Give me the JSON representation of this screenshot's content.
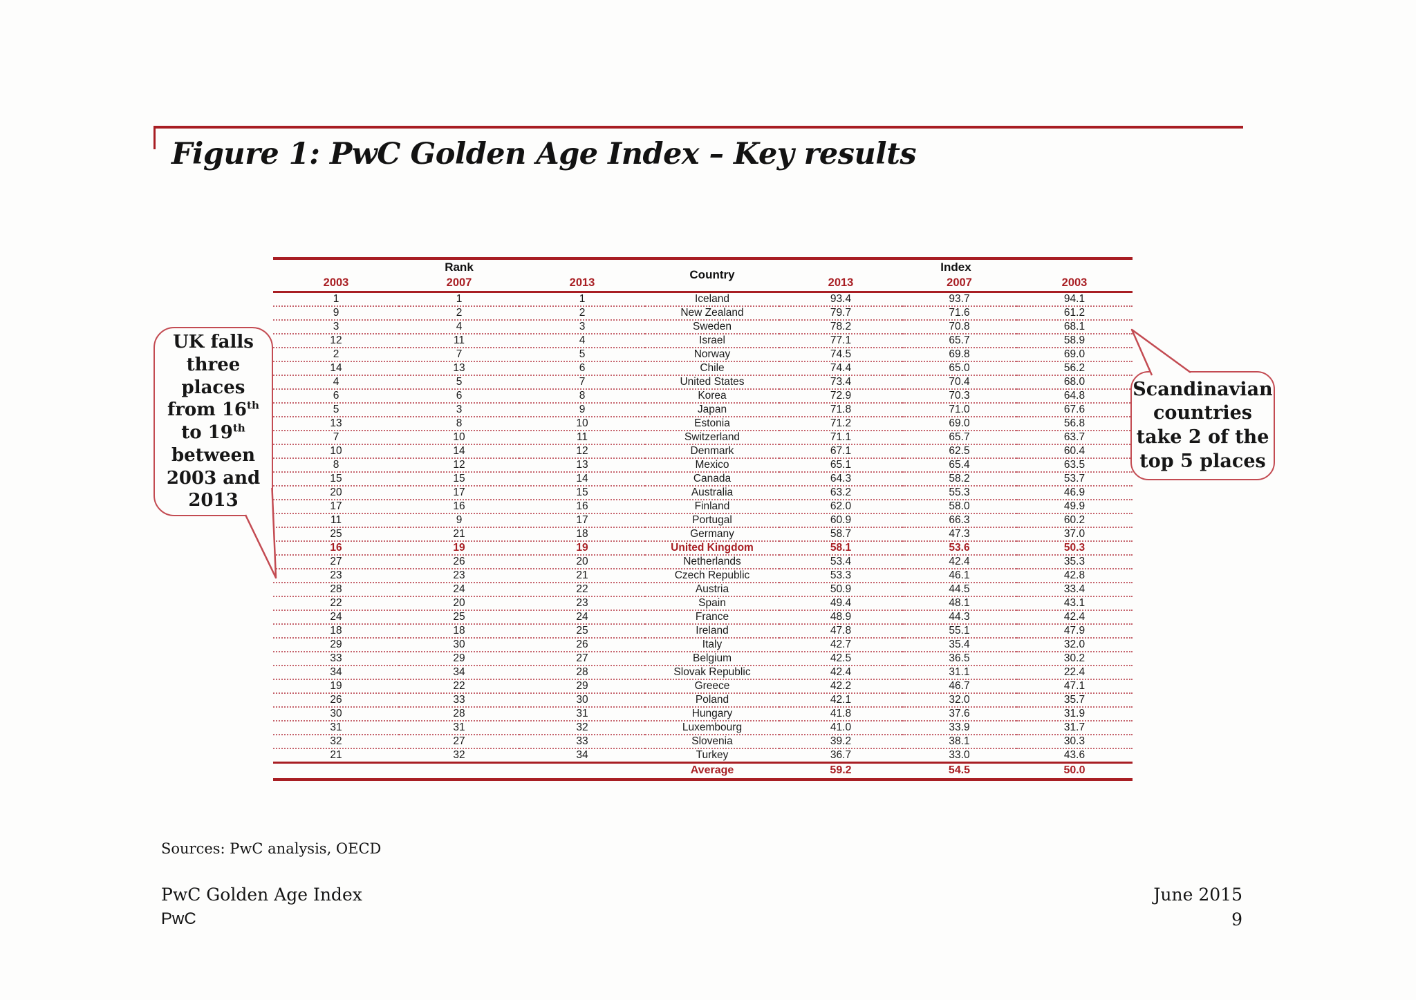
{
  "page": {
    "title": "Figure 1: PwC Golden Age Index – Key results",
    "sources": "Sources: PwC analysis, OECD",
    "footer_left1": "PwC Golden Age Index",
    "footer_left2": "PwC",
    "footer_right1": "June 2015",
    "footer_right2": "9"
  },
  "colors": {
    "accent_red": "#a81e23",
    "bubble_border_red": "#c34b52",
    "dotted_separator_red": "#c5636c"
  },
  "callouts": {
    "left": {
      "t1": "UK falls three places from 16",
      "sup": "th",
      "t2": " to 19",
      "t3": " between 2003 and 2013"
    },
    "right": {
      "text": "Scandinavian countries take 2 of the top 5 places"
    }
  },
  "table": {
    "group_headers": {
      "rank": "Rank",
      "country": "Country",
      "index": "Index"
    },
    "year_headers": {
      "rank": [
        "2003",
        "2007",
        "2013"
      ],
      "index": [
        "2013",
        "2007",
        "2003"
      ]
    },
    "highlight_country": "United Kingdom",
    "rows": [
      [
        "1",
        "1",
        "1",
        "Iceland",
        "93.4",
        "93.7",
        "94.1"
      ],
      [
        "9",
        "2",
        "2",
        "New Zealand",
        "79.7",
        "71.6",
        "61.2"
      ],
      [
        "3",
        "4",
        "3",
        "Sweden",
        "78.2",
        "70.8",
        "68.1"
      ],
      [
        "12",
        "11",
        "4",
        "Israel",
        "77.1",
        "65.7",
        "58.9"
      ],
      [
        "2",
        "7",
        "5",
        "Norway",
        "74.5",
        "69.8",
        "69.0"
      ],
      [
        "14",
        "13",
        "6",
        "Chile",
        "74.4",
        "65.0",
        "56.2"
      ],
      [
        "4",
        "5",
        "7",
        "United States",
        "73.4",
        "70.4",
        "68.0"
      ],
      [
        "6",
        "6",
        "8",
        "Korea",
        "72.9",
        "70.3",
        "64.8"
      ],
      [
        "5",
        "3",
        "9",
        "Japan",
        "71.8",
        "71.0",
        "67.6"
      ],
      [
        "13",
        "8",
        "10",
        "Estonia",
        "71.2",
        "69.0",
        "56.8"
      ],
      [
        "7",
        "10",
        "11",
        "Switzerland",
        "71.1",
        "65.7",
        "63.7"
      ],
      [
        "10",
        "14",
        "12",
        "Denmark",
        "67.1",
        "62.5",
        "60.4"
      ],
      [
        "8",
        "12",
        "13",
        "Mexico",
        "65.1",
        "65.4",
        "63.5"
      ],
      [
        "15",
        "15",
        "14",
        "Canada",
        "64.3",
        "58.2",
        "53.7"
      ],
      [
        "20",
        "17",
        "15",
        "Australia",
        "63.2",
        "55.3",
        "46.9"
      ],
      [
        "17",
        "16",
        "16",
        "Finland",
        "62.0",
        "58.0",
        "49.9"
      ],
      [
        "11",
        "9",
        "17",
        "Portugal",
        "60.9",
        "66.3",
        "60.2"
      ],
      [
        "25",
        "21",
        "18",
        "Germany",
        "58.7",
        "47.3",
        "37.0"
      ],
      [
        "16",
        "19",
        "19",
        "United Kingdom",
        "58.1",
        "53.6",
        "50.3"
      ],
      [
        "27",
        "26",
        "20",
        "Netherlands",
        "53.4",
        "42.4",
        "35.3"
      ],
      [
        "23",
        "23",
        "21",
        "Czech Republic",
        "53.3",
        "46.1",
        "42.8"
      ],
      [
        "28",
        "24",
        "22",
        "Austria",
        "50.9",
        "44.5",
        "33.4"
      ],
      [
        "22",
        "20",
        "23",
        "Spain",
        "49.4",
        "48.1",
        "43.1"
      ],
      [
        "24",
        "25",
        "24",
        "France",
        "48.9",
        "44.3",
        "42.4"
      ],
      [
        "18",
        "18",
        "25",
        "Ireland",
        "47.8",
        "55.1",
        "47.9"
      ],
      [
        "29",
        "30",
        "26",
        "Italy",
        "42.7",
        "35.4",
        "32.0"
      ],
      [
        "33",
        "29",
        "27",
        "Belgium",
        "42.5",
        "36.5",
        "30.2"
      ],
      [
        "34",
        "34",
        "28",
        "Slovak Republic",
        "42.4",
        "31.1",
        "22.4"
      ],
      [
        "19",
        "22",
        "29",
        "Greece",
        "42.2",
        "46.7",
        "47.1"
      ],
      [
        "26",
        "33",
        "30",
        "Poland",
        "42.1",
        "32.0",
        "35.7"
      ],
      [
        "30",
        "28",
        "31",
        "Hungary",
        "41.8",
        "37.6",
        "31.9"
      ],
      [
        "31",
        "31",
        "32",
        "Luxembourg",
        "41.0",
        "33.9",
        "31.7"
      ],
      [
        "32",
        "27",
        "33",
        "Slovenia",
        "39.2",
        "38.1",
        "30.3"
      ],
      [
        "21",
        "32",
        "34",
        "Turkey",
        "36.7",
        "33.0",
        "43.6"
      ]
    ],
    "average": {
      "label": "Average",
      "values": [
        "59.2",
        "54.5",
        "50.0"
      ]
    }
  }
}
